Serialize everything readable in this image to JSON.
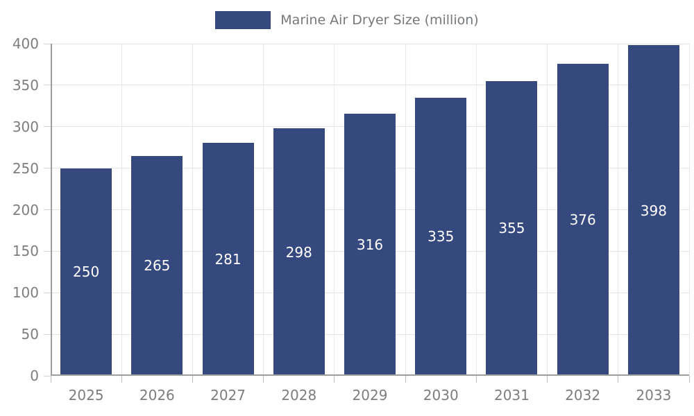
{
  "chart_data": {
    "type": "bar",
    "title": "",
    "legend": {
      "label": "Marine Air Dryer Size (million)",
      "position": "top"
    },
    "categories": [
      "2025",
      "2026",
      "2027",
      "2028",
      "2029",
      "2030",
      "2031",
      "2032",
      "2033"
    ],
    "values": [
      250,
      265,
      281,
      298,
      316,
      335,
      355,
      376,
      398
    ],
    "value_labels_shown": true,
    "xlabel": "",
    "ylabel": "",
    "ylim": [
      0,
      400
    ],
    "yticks": [
      0,
      50,
      100,
      150,
      200,
      250,
      300,
      350,
      400
    ],
    "grid": true,
    "colors": {
      "bar": "#36497E",
      "value_label": "#FFFFFF",
      "grid": "#E4E4E4",
      "axis": "#9D9D9D",
      "tick_label": "#7D7D7D",
      "legend_text": "#75787B",
      "background": "#FFFFFF"
    }
  }
}
